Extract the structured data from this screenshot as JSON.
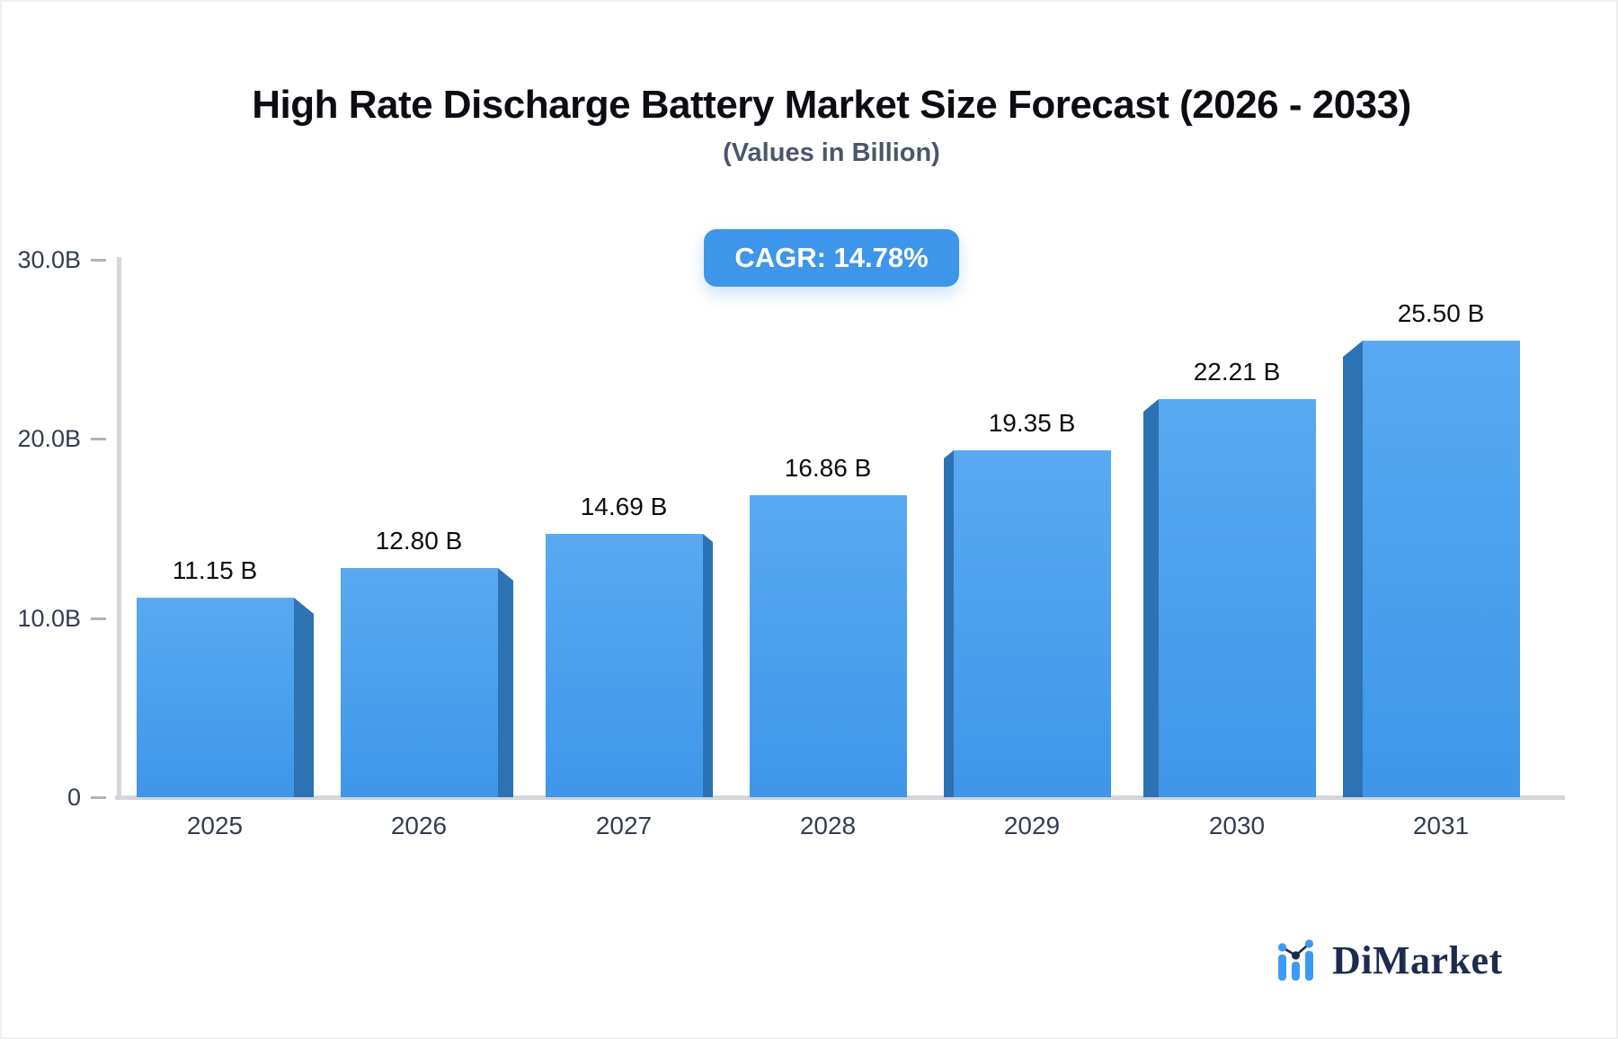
{
  "chart_data": {
    "type": "bar",
    "title": "High Rate Discharge Battery Market Size Forecast (2026 - 2033)",
    "subtitle": "(Values in Billion)",
    "annotations": [
      "CAGR: 14.78%"
    ],
    "categories": [
      "2025",
      "2026",
      "2027",
      "2028",
      "2029",
      "2030",
      "2031"
    ],
    "values": [
      11.15,
      12.8,
      14.69,
      16.86,
      19.35,
      22.21,
      25.5
    ],
    "value_labels": [
      "11.15 B",
      "12.80 B",
      "14.69 B",
      "16.86 B",
      "19.35 B",
      "22.21 B",
      "25.50 B"
    ],
    "xlabel": "",
    "ylabel": "",
    "ylim": [
      0,
      30
    ],
    "yticks": [
      {
        "label": "30.0B",
        "value": 30
      },
      {
        "label": "20.0B",
        "value": 20
      },
      {
        "label": "10.0B",
        "value": 10
      },
      {
        "label": "0",
        "value": 0
      }
    ],
    "grid": false,
    "legend": false,
    "bar_style": "3d-perspective-center",
    "colors": {
      "bar_top": "#58a9f0",
      "bar_bottom": "#3f96ea",
      "bar_side": "#2d72b2",
      "badge_bg": "#3e96ea",
      "badge_text": "#ffffff",
      "axis_line": "#d3d6da",
      "tick": "#aeb3bb",
      "tick_label": "#323e4f",
      "value_label": "#0c0e12",
      "title": "#0b0d12",
      "subtitle": "#4c566a"
    }
  },
  "logo": {
    "text": "DiMarket",
    "icon": "bar-line-chart-icon",
    "accent": "#3b9bf4",
    "dark": "#1d2b4f"
  }
}
